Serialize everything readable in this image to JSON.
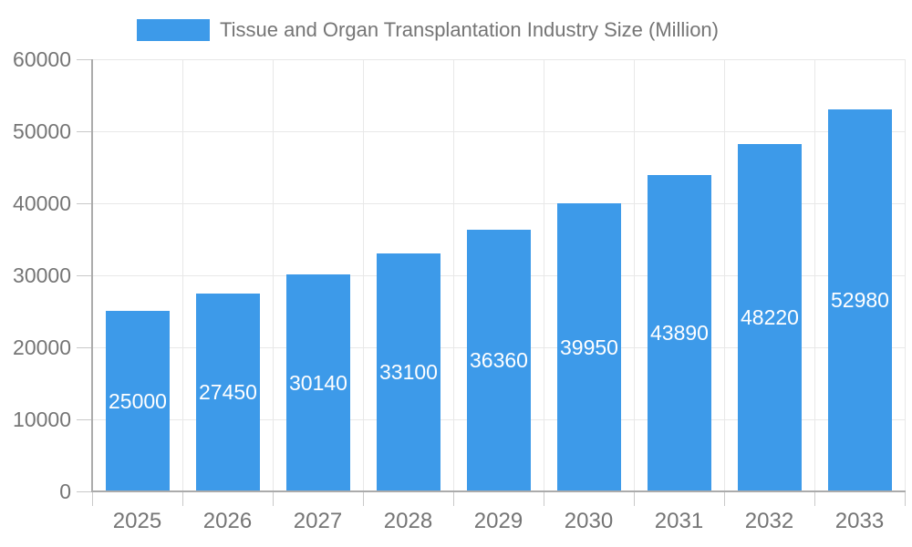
{
  "chart_data": {
    "type": "bar",
    "title": "Tissue and Organ Transplantation Industry Size (Million)",
    "categories": [
      "2025",
      "2026",
      "2027",
      "2028",
      "2029",
      "2030",
      "2031",
      "2032",
      "2033"
    ],
    "series": [
      {
        "name": "Tissue and Organ Transplantation Industry Size (Million)",
        "values": [
          25000,
          27450,
          30140,
          33100,
          36360,
          39950,
          43890,
          48220,
          52980
        ]
      }
    ],
    "bar_labels": [
      "25000",
      "27450",
      "30140",
      "33100",
      "36360",
      "39950",
      "43890",
      "48220",
      "52980"
    ],
    "xlabel": "",
    "ylabel": "",
    "ylim": [
      0,
      60000
    ],
    "yticks": [
      0,
      10000,
      20000,
      30000,
      40000,
      50000,
      60000
    ],
    "ytick_labels": [
      "0",
      "10000",
      "20000",
      "30000",
      "40000",
      "50000",
      "60000"
    ],
    "grid": true,
    "legend_position": "top",
    "colors": {
      "bar": "#3D9AE9",
      "bar_label": "#FFFFFF",
      "axis_text": "#757575",
      "grid_line": "#E8E8E8",
      "axis_line": "#ABABAB",
      "tick_line": "#C9C9C9"
    }
  },
  "legend": {
    "label": "Tissue and Organ Transplantation Industry Size (Million)",
    "swatch_color": "#3D9AE9"
  }
}
